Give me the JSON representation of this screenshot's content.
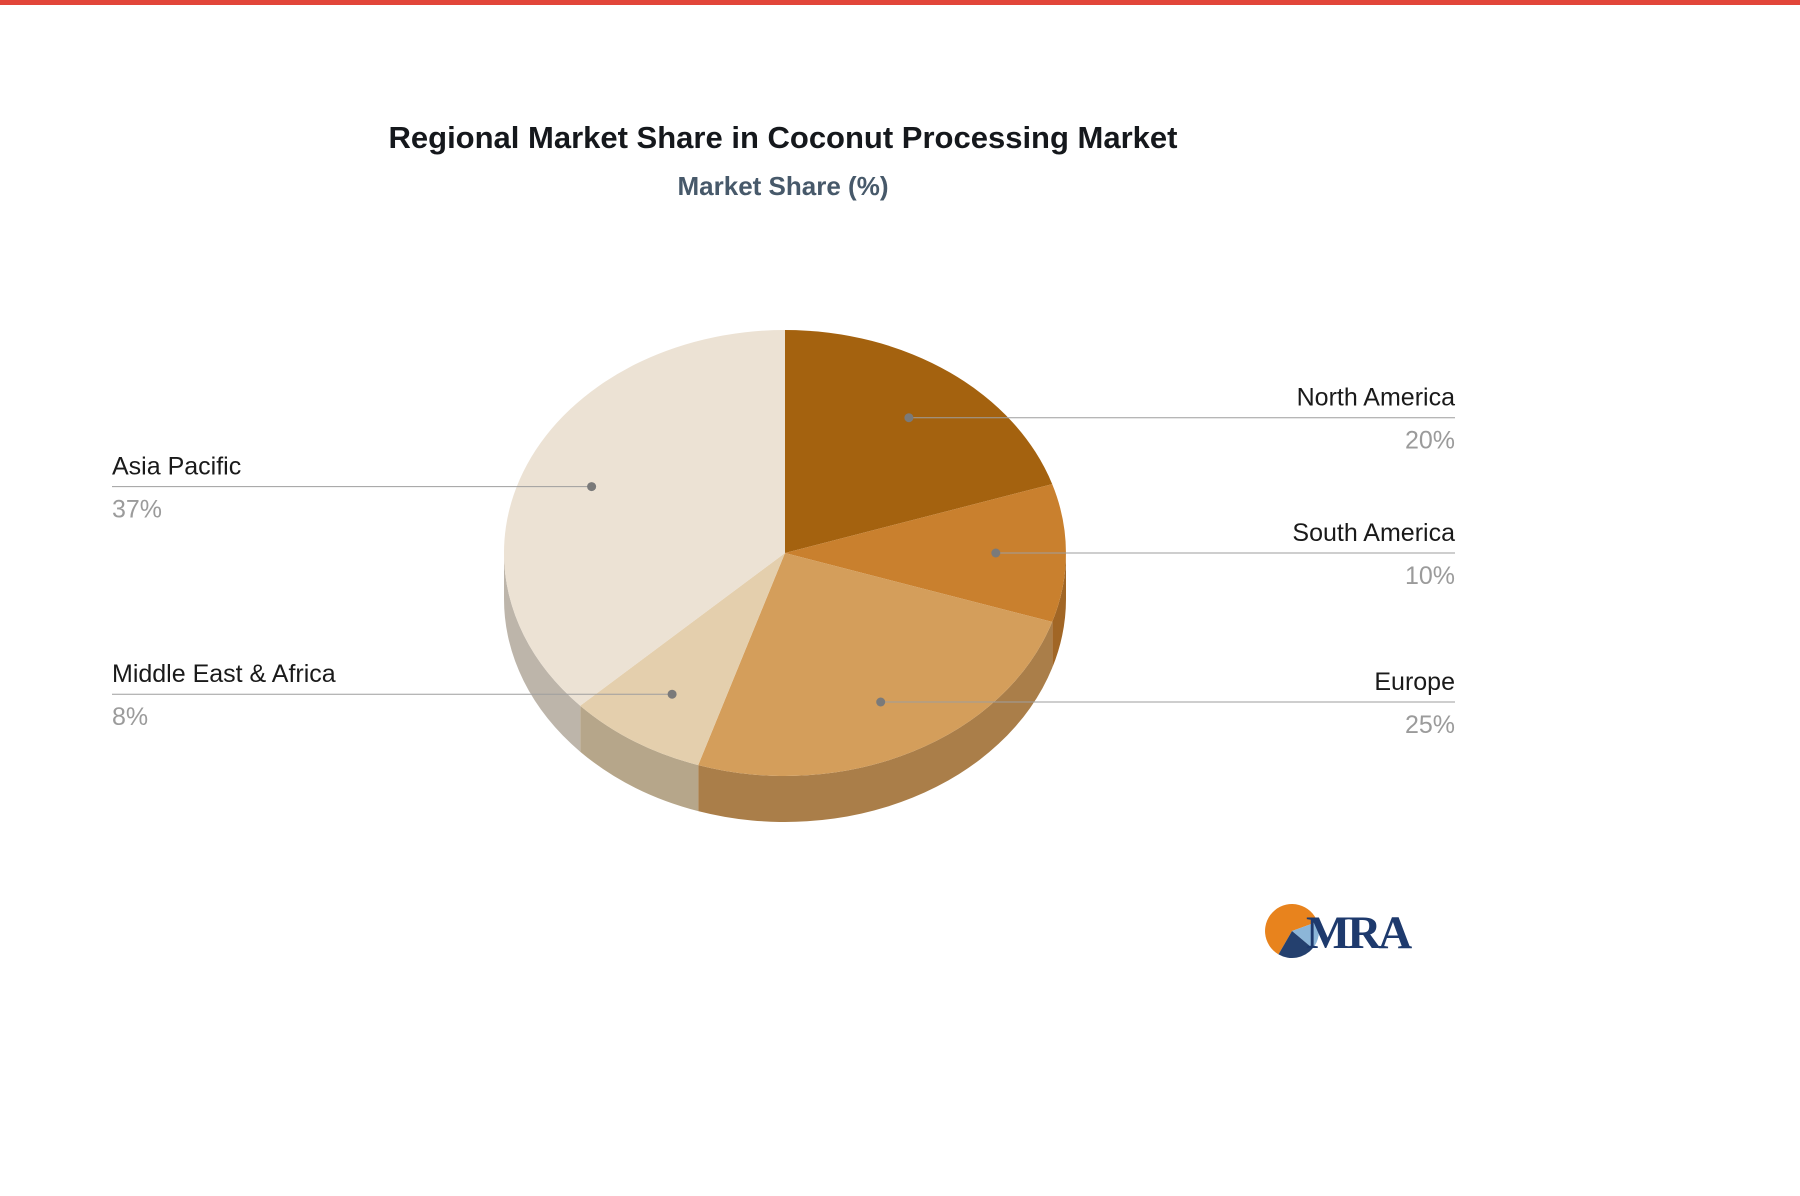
{
  "page": {
    "accent_color": "#e2463a",
    "background": "#ffffff"
  },
  "title": "Regional Market Share in Coconut Processing Market",
  "subtitle": "Market Share (%)",
  "chart_data": {
    "type": "pie",
    "title": "Regional Market Share in Coconut Processing Market",
    "subtitle": "Market Share (%)",
    "unit": "%",
    "direction": "clockwise",
    "start_angle_deg": 0,
    "effect": "3d-depth",
    "slices": [
      {
        "label": "North America",
        "value": 20,
        "color": "#a4620f"
      },
      {
        "label": "South America",
        "value": 10,
        "color": "#c9802e"
      },
      {
        "label": "Europe",
        "value": 25,
        "color": "#d49e5b"
      },
      {
        "label": "Middle East & Africa",
        "value": 8,
        "color": "#e4cfad"
      },
      {
        "label": "Asia Pacific",
        "value": 37,
        "color": "#ece2d4"
      }
    ],
    "label_text_color": "#1a1a1a",
    "value_text_color": "#9b9b9b",
    "leader_line_color": "#9e9e9e",
    "leader_dot_color": "#7a7a7a",
    "legend_position": "callout-labels-left-right",
    "grid": false
  },
  "logo": {
    "text": "MRA",
    "text_color": "#1e3a6d",
    "wedge_colors": {
      "orange": "#e8831d",
      "light_blue": "#8cb6d8",
      "navy": "#24406e"
    }
  }
}
